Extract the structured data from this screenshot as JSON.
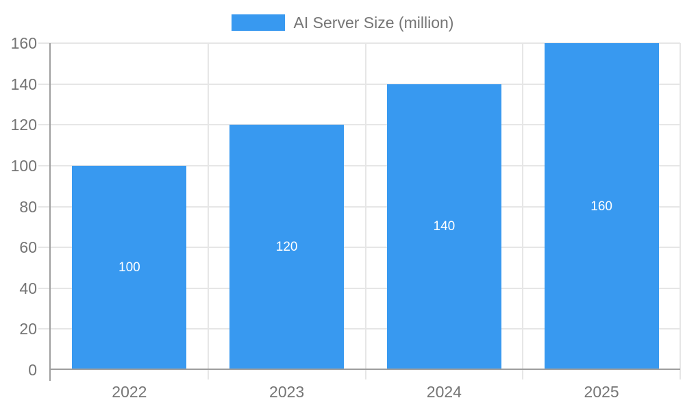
{
  "chart_data": {
    "type": "bar",
    "title": "AI Server Size (million)",
    "legend": [
      "AI Server Size (million)"
    ],
    "legend_position": "top-center",
    "categories": [
      "2022",
      "2023",
      "2024",
      "2025"
    ],
    "values": [
      100,
      120,
      140,
      160
    ],
    "value_labels": [
      "100",
      "120",
      "140",
      "160"
    ],
    "xlabel": "",
    "ylabel": "",
    "ylim": [
      0,
      160
    ],
    "ytick_interval": 20,
    "ytick_labels": [
      "0",
      "20",
      "40",
      "60",
      "80",
      "100",
      "120",
      "140",
      "160"
    ],
    "grid": true
  },
  "colors": {
    "bar": "#3899F0",
    "grid_line": "#e6e6e6",
    "axis_line": "#9e9e9e",
    "tick_text": "#757575",
    "legend_text": "#757575",
    "value_label_text": "#ffffff",
    "background": "#ffffff"
  }
}
